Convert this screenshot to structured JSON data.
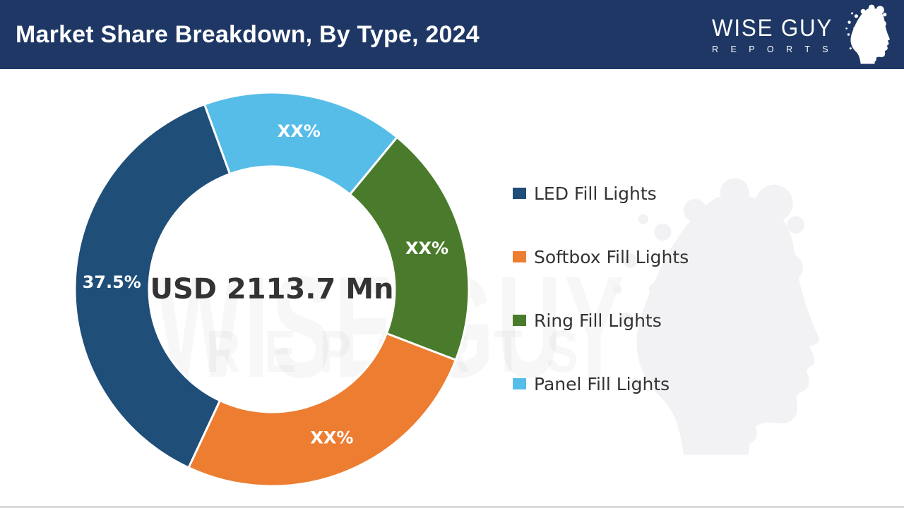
{
  "header": {
    "title": "Market Share Breakdown, By Type, 2024",
    "bg_color": "#1E3765",
    "logo": {
      "wordmark": "WISE GUY",
      "subtitle": "R E P O R T S"
    }
  },
  "chart_data": {
    "type": "pie",
    "subtype": "donut",
    "title": "Market Share Breakdown, By Type, 2024",
    "center_label": "USD 2113.7 Mn",
    "start_angle_deg": 110,
    "direction": "counterclockwise",
    "legend_position": "right",
    "categories": [
      "LED Fill Lights",
      "Softbox Fill Lights",
      "Ring Fill Lights",
      "Panel Fill Lights"
    ],
    "values": [
      37.5,
      26.1,
      19.9,
      16.5
    ],
    "segments": [
      {
        "label": "LED Fill Lights",
        "value_pct": 37.5,
        "display": "37.5%",
        "color": "#1F4E79"
      },
      {
        "label": "Softbox Fill Lights",
        "value_pct": 26.1,
        "display": "XX%",
        "color": "#ED7D31"
      },
      {
        "label": "Ring Fill Lights",
        "value_pct": 19.9,
        "display": "XX%",
        "color": "#4A7A2B"
      },
      {
        "label": "Panel Fill Lights",
        "value_pct": 16.5,
        "display": "XX%",
        "color": "#56BDE8"
      }
    ]
  },
  "watermark": {
    "line1": "WISE GUY",
    "line2": "REPORTS"
  }
}
